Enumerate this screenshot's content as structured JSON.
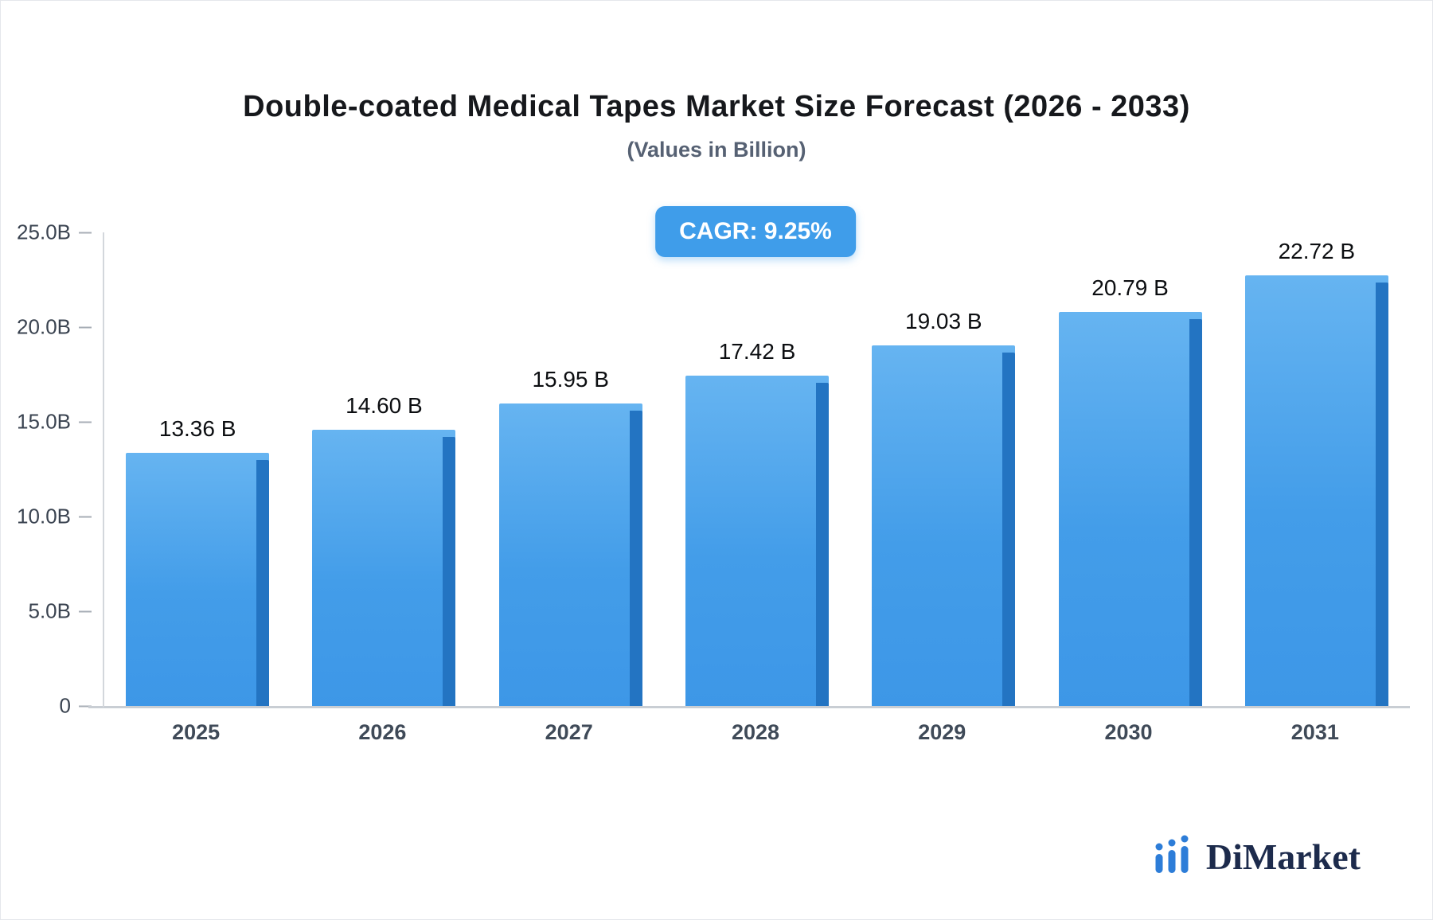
{
  "header": {
    "title": "Double-coated Medical Tapes Market Size Forecast (2026 - 2033)",
    "subtitle": "(Values in Billion)"
  },
  "badge": {
    "label": "CAGR: 9.25%",
    "color": "#3f9dea"
  },
  "chart_data": {
    "type": "bar",
    "categories": [
      "2025",
      "2026",
      "2027",
      "2028",
      "2029",
      "2030",
      "2031"
    ],
    "values": [
      13.36,
      14.6,
      15.95,
      17.42,
      19.03,
      20.79,
      22.72
    ],
    "value_labels": [
      "13.36 B",
      "14.60 B",
      "15.95 B",
      "17.42 B",
      "19.03 B",
      "20.79 B",
      "22.72 B"
    ],
    "title": "Double-coated Medical Tapes Market Size Forecast (2026 - 2033)",
    "subtitle": "(Values in Billion)",
    "xlabel": "",
    "ylabel": "",
    "ylim": [
      0,
      25
    ],
    "ytick_values": [
      0,
      5,
      10,
      15,
      20,
      25
    ],
    "ytick_labels": [
      "0",
      "5.0B",
      "10.0B",
      "15.0B",
      "20.0B",
      "25.0B"
    ],
    "grid": false,
    "legend": false,
    "bar_color_top": "#66b4f1",
    "bar_color_bottom": "#3d97e7",
    "bar_edge_color": "#2374c2"
  },
  "footer": {
    "brand": "DiMarket"
  }
}
